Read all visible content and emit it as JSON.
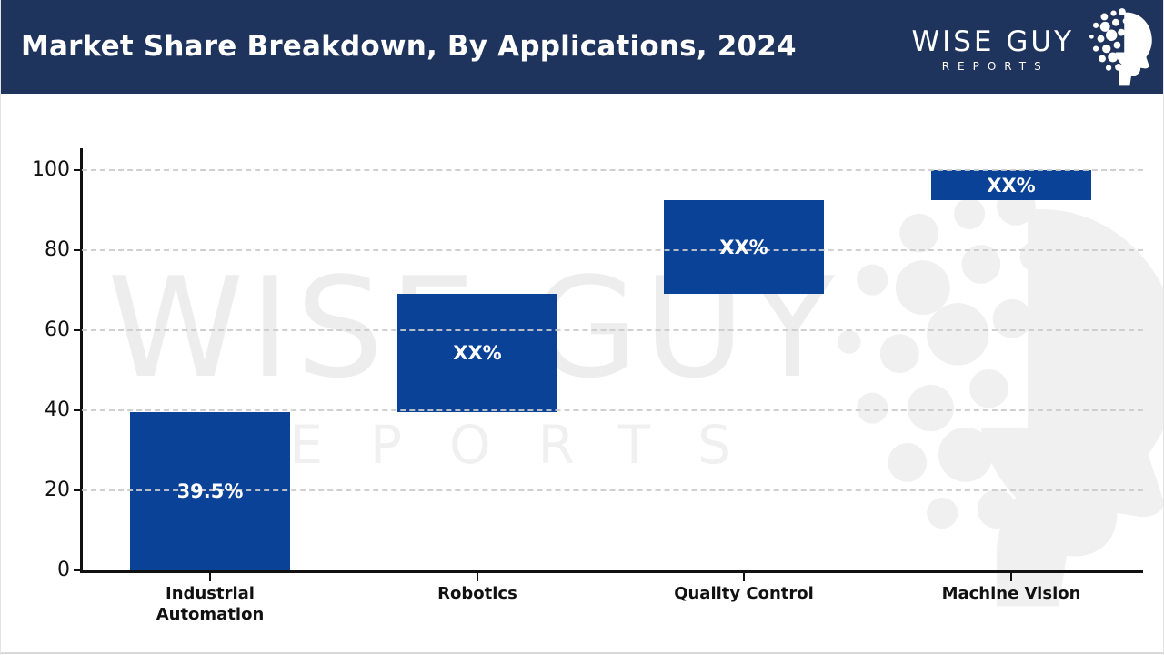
{
  "header": {
    "title": "Market Share Breakdown, By Applications, 2024",
    "bg_color": "#1f345c",
    "logo": {
      "wordmark": "WISE GUY",
      "subtext": "REPORTS",
      "icon": "dotted-head-profile-icon"
    }
  },
  "watermark": {
    "line1": "WISE GUY",
    "line2": "REPORTS"
  },
  "chart_data": {
    "type": "bar",
    "subtype": "waterfall",
    "title": "Market Share Breakdown, By Applications, 2024",
    "categories": [
      "Industrial Automation",
      "Robotics",
      "Quality Control",
      "Machine Vision"
    ],
    "series": [
      {
        "name": "Industrial Automation",
        "start": 0,
        "end": 39.5,
        "label": "39.5%",
        "estimated_value": 39.5
      },
      {
        "name": "Robotics",
        "start": 39.5,
        "end": 69,
        "label": "XX%",
        "estimated_value": 29.5
      },
      {
        "name": "Quality Control",
        "start": 69,
        "end": 92.5,
        "label": "XX%",
        "estimated_value": 23.5
      },
      {
        "name": "Machine Vision",
        "start": 92.5,
        "end": 100,
        "label": "XX%",
        "estimated_value": 7.5
      }
    ],
    "xlabel": "",
    "ylabel": "",
    "y_ticks": [
      0,
      20,
      40,
      60,
      80,
      100
    ],
    "ylim": [
      0,
      105
    ],
    "grid": "horizontal-dashed",
    "legend": "none",
    "bar_color": "#0a4298",
    "label_color": "#ffffff",
    "axis_color": "#111111"
  }
}
